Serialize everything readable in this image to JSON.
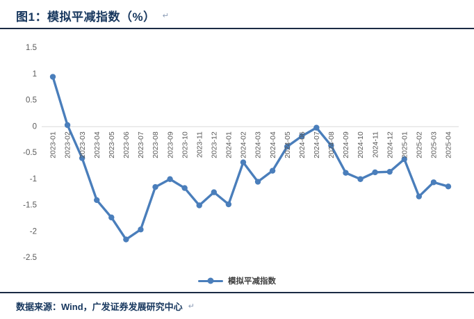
{
  "title": {
    "text": "图1：模拟平减指数（%）",
    "paragraph_mark": "↵"
  },
  "footer": {
    "text": "数据来源：Wind，广发证券发展研究中心",
    "paragraph_mark": "↵"
  },
  "legend": {
    "label": "模拟平减指数"
  },
  "colors": {
    "line": "#4a7ebb",
    "title_text": "#17375e",
    "footer_text": "#17375e",
    "rule": "#1a2a44",
    "axis_text": "#595959",
    "zero_line": "#d9d9d9",
    "legend_text": "#404040"
  },
  "chart_data": {
    "type": "line",
    "title": "模拟平减指数（%）",
    "xlabel": "",
    "ylabel": "",
    "x": [
      "2023-01",
      "2023-02",
      "2023-03",
      "2023-04",
      "2023-05",
      "2023-06",
      "2023-07",
      "2023-08",
      "2023-09",
      "2023-10",
      "2023-11",
      "2023-12",
      "2024-01",
      "2024-02",
      "2024-03",
      "2024-04",
      "2024-05",
      "2024-06",
      "2024-07",
      "2024-08",
      "2024-09",
      "2024-10",
      "2024-11",
      "2024-12",
      "2025-01",
      "2025-02",
      "2025-03",
      "2025-04"
    ],
    "series": [
      {
        "name": "模拟平减指数",
        "values": [
          0.95,
          0.03,
          -0.6,
          -1.4,
          -1.73,
          -2.15,
          -1.96,
          -1.15,
          -1.0,
          -1.17,
          -1.5,
          -1.25,
          -1.48,
          -0.68,
          -1.05,
          -0.84,
          -0.38,
          -0.18,
          -0.02,
          -0.36,
          -0.88,
          -1.0,
          -0.87,
          -0.86,
          -0.62,
          -1.33,
          -1.06,
          -1.14
        ]
      }
    ],
    "ylim": [
      -2.5,
      1.5
    ],
    "ytick_values": [
      1.5,
      1,
      0.5,
      0,
      -0.5,
      -1,
      -1.5,
      -2,
      -2.5
    ],
    "ytick_labels": [
      "1.5",
      "1",
      "0.5",
      "0",
      "-0.5",
      "-1",
      "-1.5",
      "-2",
      "-2.5"
    ],
    "grid": "zero-axis-only",
    "x_label_rotation": -90,
    "x_labels_at_zero_line": true,
    "legend_position": "bottom",
    "marker": "circle"
  }
}
